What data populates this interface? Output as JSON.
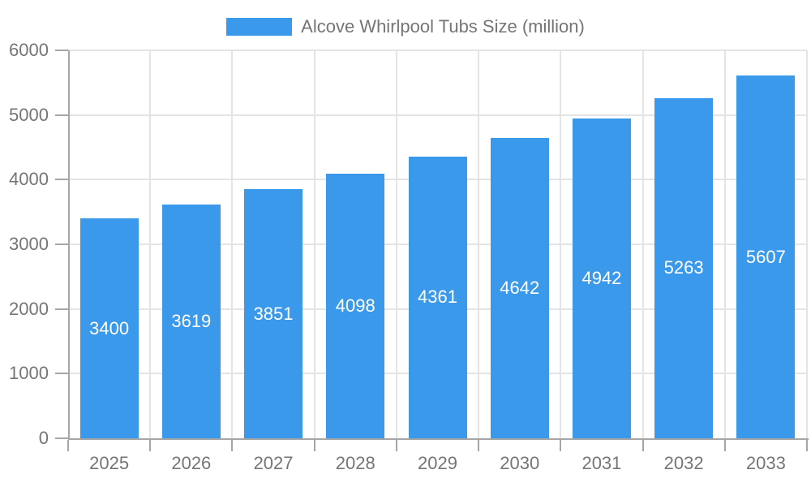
{
  "legend": {
    "label": "Alcove Whirlpool Tubs Size (million)"
  },
  "chart_data": {
    "type": "bar",
    "title": "Alcove Whirlpool Tubs Size (million)",
    "categories": [
      "2025",
      "2026",
      "2027",
      "2028",
      "2029",
      "2030",
      "2031",
      "2032",
      "2033"
    ],
    "series": [
      {
        "name": "Alcove Whirlpool Tubs Size (million)",
        "values": [
          3400,
          3619,
          3851,
          4098,
          4361,
          4642,
          4942,
          5263,
          5607
        ]
      }
    ],
    "bar_labels": [
      "3400",
      "3619",
      "3851",
      "4098",
      "4361",
      "4642",
      "4942",
      "5263",
      "5607"
    ],
    "xlabel": "",
    "ylabel": "",
    "ylim": [
      0,
      6000
    ],
    "ytick_step": 1000,
    "y_tick_labels": [
      "0",
      "1000",
      "2000",
      "3000",
      "4000",
      "5000",
      "6000"
    ],
    "grid": true,
    "legend_position": "top",
    "colors": {
      "bar": "#3B99EC",
      "bar_label": "#FFFFFF",
      "axis_text": "#757575",
      "grid_line": "#E4E4E4",
      "axis_line": "#A6A6A6",
      "background": "#FFFFFF"
    }
  }
}
